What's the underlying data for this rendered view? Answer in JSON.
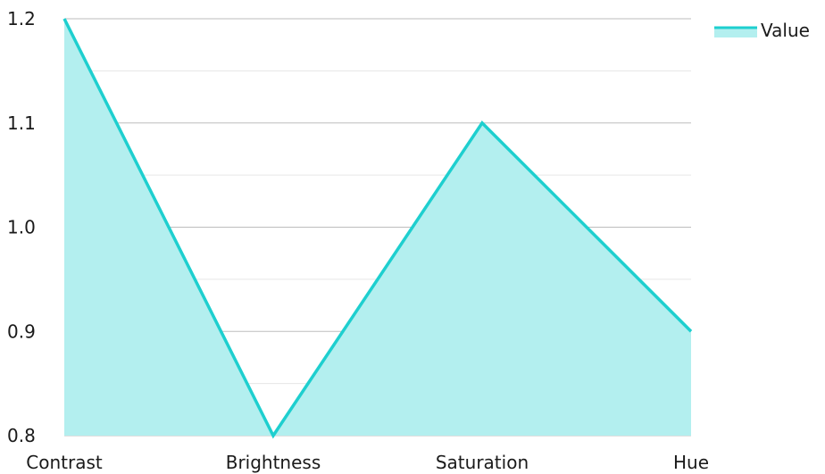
{
  "chart_data": {
    "type": "area",
    "categories": [
      "Contrast",
      "Brightness",
      "Saturation",
      "Hue"
    ],
    "series": [
      {
        "name": "Value",
        "values": [
          1.2,
          0.8,
          1.1,
          0.9
        ]
      }
    ],
    "ylim": [
      0.8,
      1.2
    ],
    "yticks": [
      "0.8",
      "0.9",
      "1.0",
      "1.1",
      "1.2"
    ],
    "minor_gridlines": true,
    "grid": true,
    "legend": {
      "position": "top-right",
      "label": "Value"
    },
    "colors": {
      "line": "#1ECFCF",
      "fill": "#B3EFEF",
      "grid_major": "#BDBDBD",
      "grid_minor": "#E6E6E6",
      "text": "#1A1A1A"
    }
  }
}
